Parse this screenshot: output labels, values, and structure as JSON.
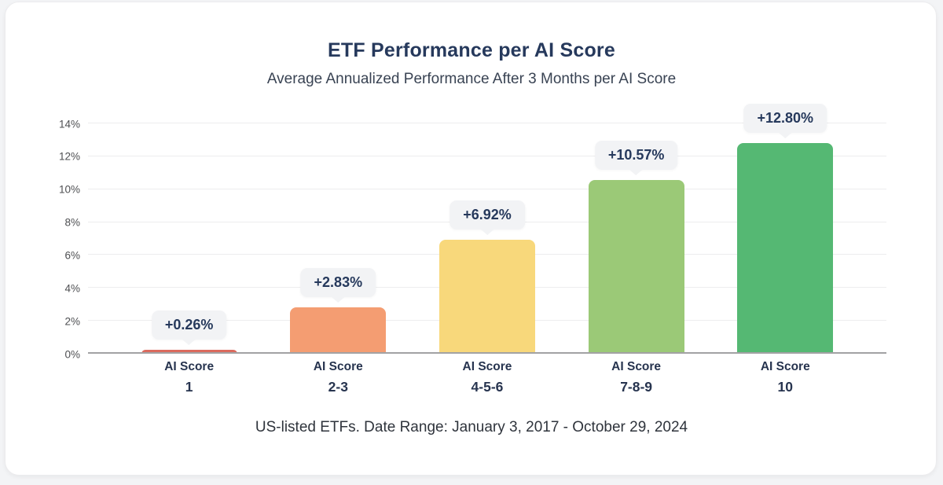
{
  "header": {
    "title": "ETF Performance per AI Score",
    "subtitle": "Average Annualized Performance After 3 Months per AI Score"
  },
  "footer": {
    "note": "US-listed ETFs. Date Range: January 3, 2017 - October 29, 2024"
  },
  "colors": {
    "card_background": "#ffffff",
    "page_background": "#f3f4f6",
    "title_navy": "#26395c",
    "badge_background": "#f2f3f5",
    "baseline_gray": "#a2a2a4",
    "gridline_gray": "#ededee"
  },
  "chart_data": {
    "type": "bar",
    "title": "ETF Performance per AI Score",
    "subtitle": "Average Annualized Performance After 3 Months per AI Score",
    "footnote": "US-listed ETFs. Date Range: January 3, 2017 - October 29, 2024",
    "xlabel": "",
    "ylabel": "",
    "ylim": [
      0,
      14
    ],
    "ytick_labels": [
      "0%",
      "2%",
      "4%",
      "6%",
      "8%",
      "10%",
      "12%",
      "14%"
    ],
    "ytick_values": [
      0,
      2,
      4,
      6,
      8,
      10,
      12,
      14
    ],
    "grid": true,
    "legend": false,
    "categories": [
      "AI Score 1",
      "AI Score 2-3",
      "AI Score 4-5-6",
      "AI Score 7-8-9",
      "AI Score 10"
    ],
    "values": [
      0.26,
      2.83,
      6.92,
      10.57,
      12.8
    ],
    "bars": [
      {
        "category_line1": "AI Score",
        "category_line2": "1",
        "value": 0.26,
        "value_label": "+0.26%",
        "color": "#db6a5e"
      },
      {
        "category_line1": "AI Score",
        "category_line2": "2-3",
        "value": 2.83,
        "value_label": "+2.83%",
        "color": "#f49d72"
      },
      {
        "category_line1": "AI Score",
        "category_line2": "4-5-6",
        "value": 6.92,
        "value_label": "+6.92%",
        "color": "#f8d87b"
      },
      {
        "category_line1": "AI Score",
        "category_line2": "7-8-9",
        "value": 10.57,
        "value_label": "+10.57%",
        "color": "#9bc977"
      },
      {
        "category_line1": "AI Score",
        "category_line2": "10",
        "value": 12.8,
        "value_label": "+12.80%",
        "color": "#55b873"
      }
    ]
  }
}
